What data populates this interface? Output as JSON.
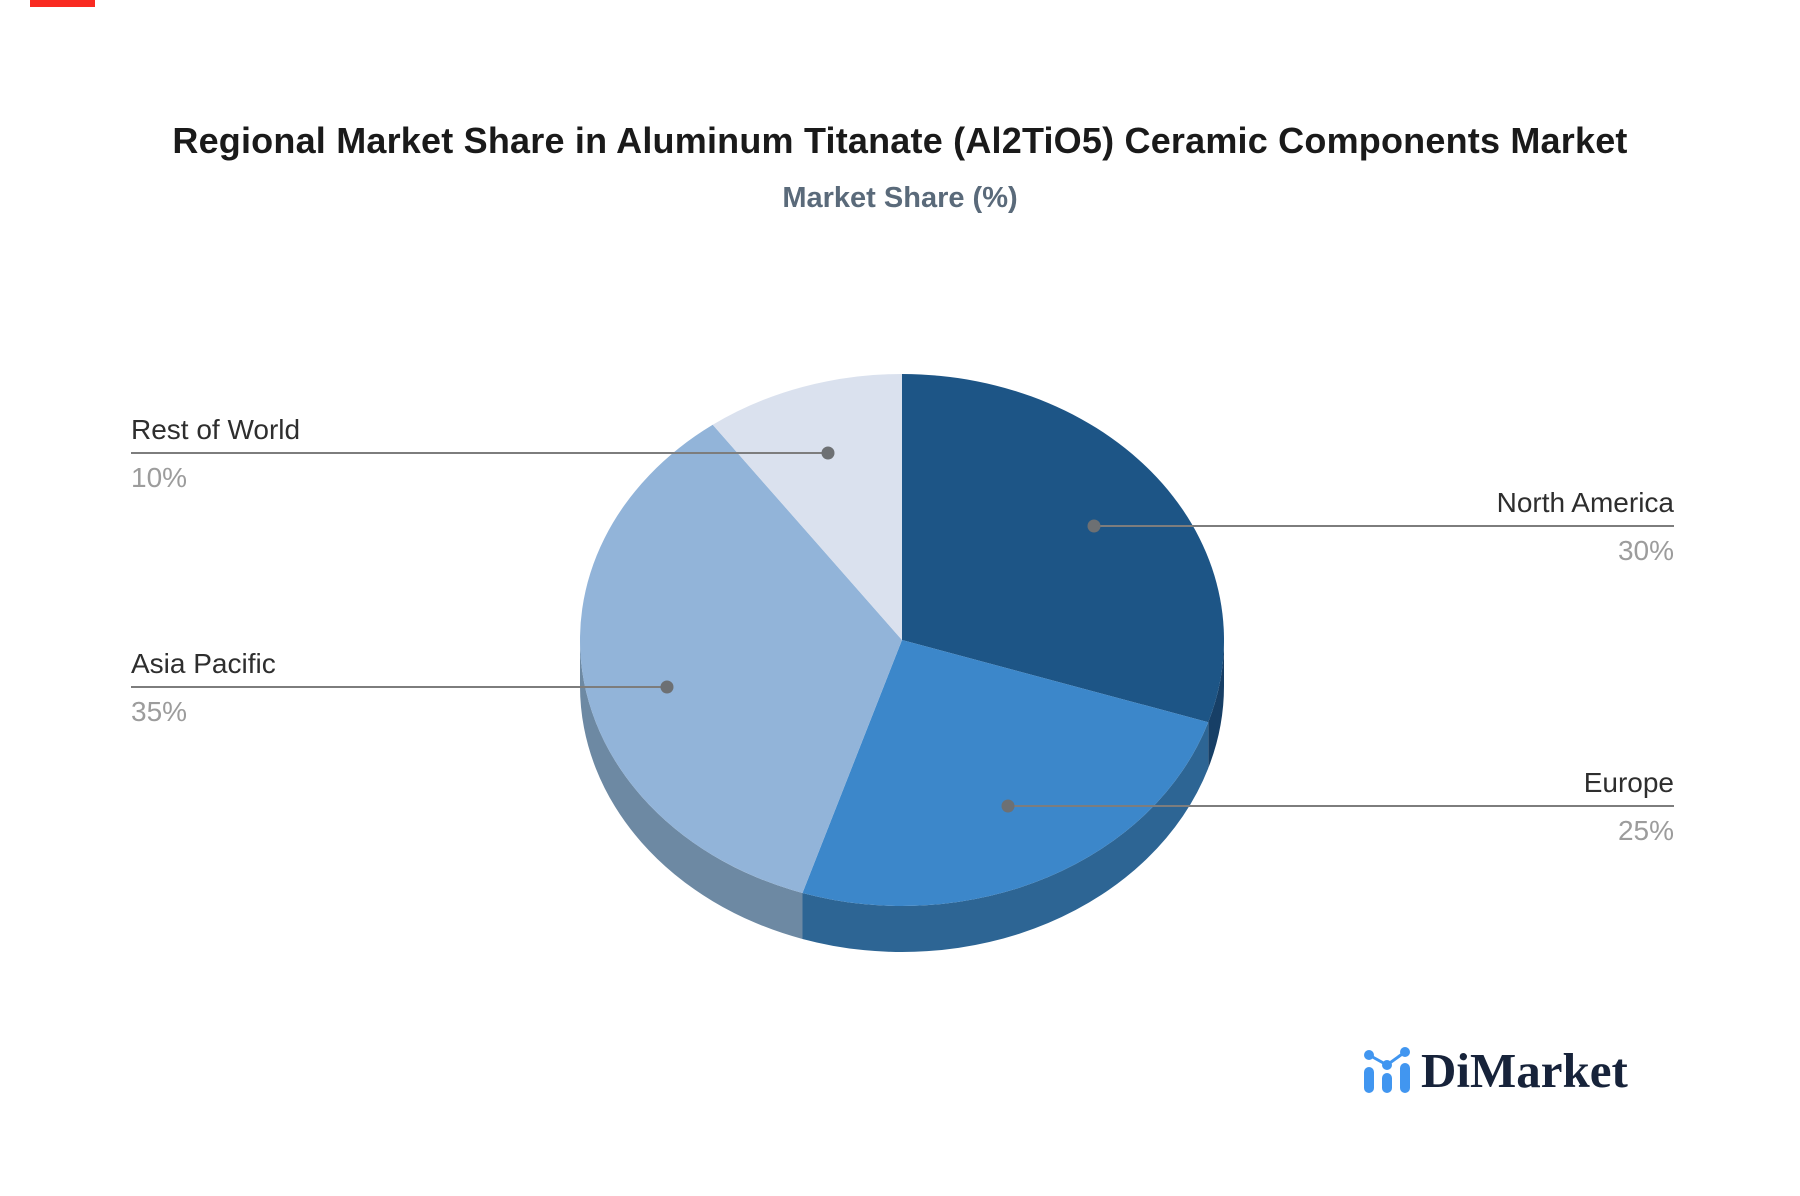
{
  "header": {
    "title": "Regional Market Share in Aluminum Titanate (Al2TiO5) Ceramic Components Market",
    "subtitle": "Market Share (%)"
  },
  "chart_data": {
    "type": "pie",
    "title": "Regional Market Share in Aluminum Titanate (Al2TiO5) Ceramic Components Market",
    "subtitle": "Market Share (%)",
    "unit": "%",
    "start_angle_deg": 0,
    "clockwise": true,
    "effect_3d": true,
    "legend_position": "callout-labels",
    "slices": [
      {
        "label": "North America",
        "value": 30,
        "value_label": "30%",
        "color": "#1d5586",
        "side_color": "#173f66"
      },
      {
        "label": "Europe",
        "value": 25,
        "value_label": "25%",
        "color": "#3c87ca",
        "side_color": "#2d6594"
      },
      {
        "label": "Asia Pacific",
        "value": 35,
        "value_label": "35%",
        "color": "#92b4d9",
        "side_color": "#6d89a3"
      },
      {
        "label": "Rest of World",
        "value": 10,
        "value_label": "10%",
        "color": "#dae1ee"
      }
    ]
  },
  "branding": {
    "logo_text": "DiMarket",
    "logo_icon": "bar-chart-trendline-icon",
    "logo_icon_color": "#4196f0",
    "logo_text_color": "#17233a"
  }
}
